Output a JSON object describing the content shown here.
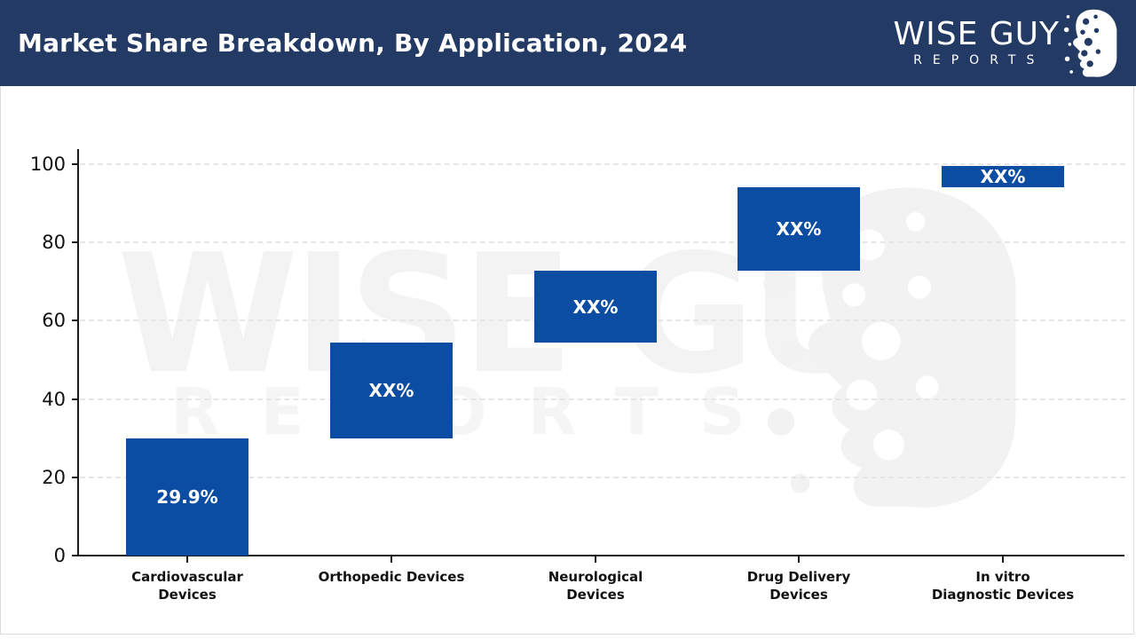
{
  "header": {
    "title": "Market Share Breakdown, By Application, 2024",
    "bg_color": "#223a64",
    "text_color": "#ffffff",
    "brand": {
      "line1": "WISE GUY",
      "line2": "REPORTS"
    }
  },
  "watermark": {
    "line1": "WISE GUY",
    "line2": "REPORTS"
  },
  "chart_data": {
    "type": "bar",
    "subtype": "floating_waterfall_segments",
    "title": "Market Share Breakdown, By Application, 2024",
    "categories": [
      "Cardiovascular\nDevices",
      "Orthopedic Devices",
      "Neurological\nDevices",
      "Drug Delivery\nDevices",
      "In vitro\nDiagnostic Devices"
    ],
    "segments": [
      {
        "start": 0,
        "end": 29.9,
        "label": "29.9%"
      },
      {
        "start": 29.9,
        "end": 54.4,
        "label": "XX%"
      },
      {
        "start": 54.4,
        "end": 72.8,
        "label": "XX%"
      },
      {
        "start": 72.8,
        "end": 94.2,
        "label": "XX%"
      },
      {
        "start": 94.2,
        "end": 99.6,
        "label": "XX%"
      }
    ],
    "xlabel": "",
    "ylabel": "",
    "yticks": [
      0,
      20,
      40,
      60,
      80,
      100
    ],
    "ylim": [
      0,
      106
    ],
    "grid": {
      "axis": "y",
      "style": "dashed",
      "color": "#e6e6e6"
    },
    "legend_position": "none",
    "bar_color": "#0b4da2",
    "bar_label_color": "#ffffff",
    "axis_color": "#1a1a1a"
  }
}
